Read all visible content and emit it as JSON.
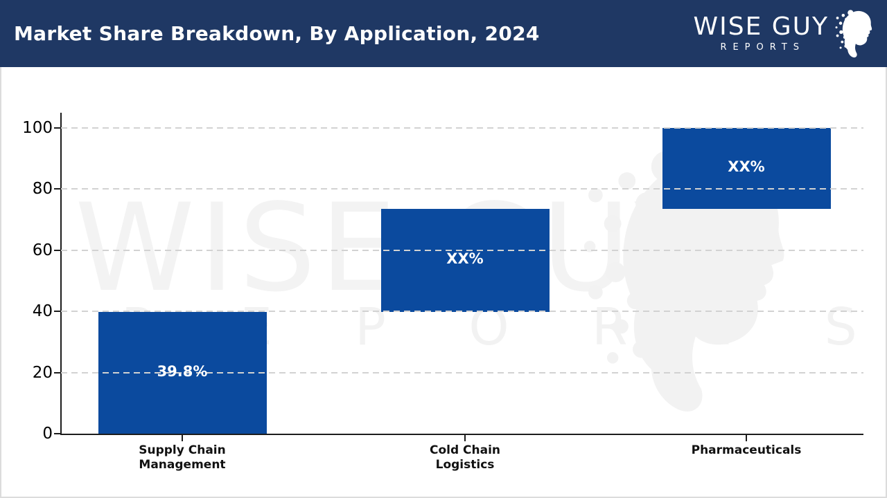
{
  "header": {
    "title": "Market Share Breakdown, By Application, 2024",
    "bg_color": "#1f3864",
    "logo": {
      "wordmark": "WISE GUY",
      "subtext": "REPORTS"
    }
  },
  "watermark": {
    "line1": "WISE GUY",
    "line2": "R E P O R T S"
  },
  "chart_data": {
    "type": "bar",
    "variant": "waterfall-breakdown",
    "title": "Market Share Breakdown, By Application, 2024",
    "categories": [
      "Supply Chain\nManagement",
      "Cold Chain\nLogistics",
      "Pharmaceuticals"
    ],
    "bars": [
      {
        "category": "Supply Chain\nManagement",
        "start": 0,
        "end": 39.8,
        "value_label": "39.8%"
      },
      {
        "category": "Cold Chain\nLogistics",
        "start": 39.8,
        "end": 73.6,
        "value_label": "XX%"
      },
      {
        "category": "Pharmaceuticals",
        "start": 73.6,
        "end": 100,
        "value_label": "XX%"
      }
    ],
    "yticks": [
      0,
      20,
      40,
      60,
      80,
      100
    ],
    "ylim": [
      0,
      105
    ],
    "xlabel": "",
    "ylabel": "",
    "grid": "dashed-horizontal",
    "legend": "none",
    "bar_color": "#0b4a9e",
    "bar_label_color": "#ffffff",
    "axis_color": "#1c1c1c",
    "grid_color": "#d2d2d2"
  }
}
